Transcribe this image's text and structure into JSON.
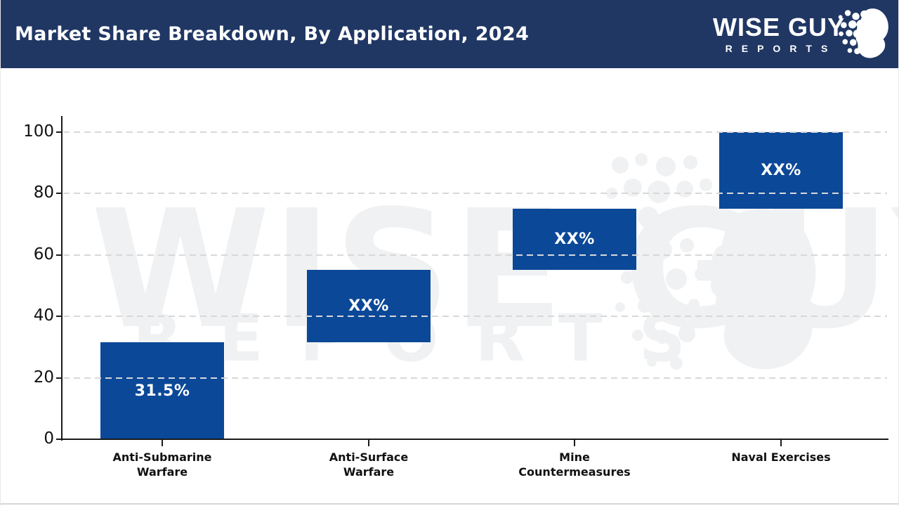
{
  "header": {
    "title": "Market Share Breakdown, By Application, 2024",
    "logo": {
      "wordmark": "WISE GUY",
      "subtitle": "REPORTS"
    }
  },
  "watermark": {
    "wordmark": "WISE GUY",
    "subtitle": "REPORTS"
  },
  "colors": {
    "header_bg": "#203764",
    "bar_fill": "#0b4898",
    "bar_label": "#ffffff",
    "axis": "#1a1a1a",
    "tick_label": "#111111",
    "gridline": "#d8d8d8",
    "watermark": "#eff1f3",
    "bottom_rule": "#d6d6d6"
  },
  "chart_data": {
    "type": "waterfall",
    "title": "Market Share Breakdown, By Application, 2024",
    "categories": [
      "Anti-Submarine Warfare",
      "Anti-Surface Warfare",
      "Mine Countermeasures",
      "Naval Exercises"
    ],
    "segments": [
      {
        "category": "Anti-Submarine Warfare",
        "start": 0,
        "end": 31.5,
        "label": "31.5%"
      },
      {
        "category": "Anti-Surface Warfare",
        "start": 31.5,
        "end": 55,
        "label": "XX%"
      },
      {
        "category": "Mine Countermeasures",
        "start": 55,
        "end": 75,
        "label": "XX%"
      },
      {
        "category": "Naval Exercises",
        "start": 75,
        "end": 100,
        "label": "XX%"
      }
    ],
    "xlabel": "",
    "ylabel": "",
    "ylim": [
      0,
      100
    ],
    "y_ticks": [
      0,
      20,
      40,
      60,
      80,
      100
    ],
    "grid": "horizontal-dashed",
    "legend": "none"
  }
}
